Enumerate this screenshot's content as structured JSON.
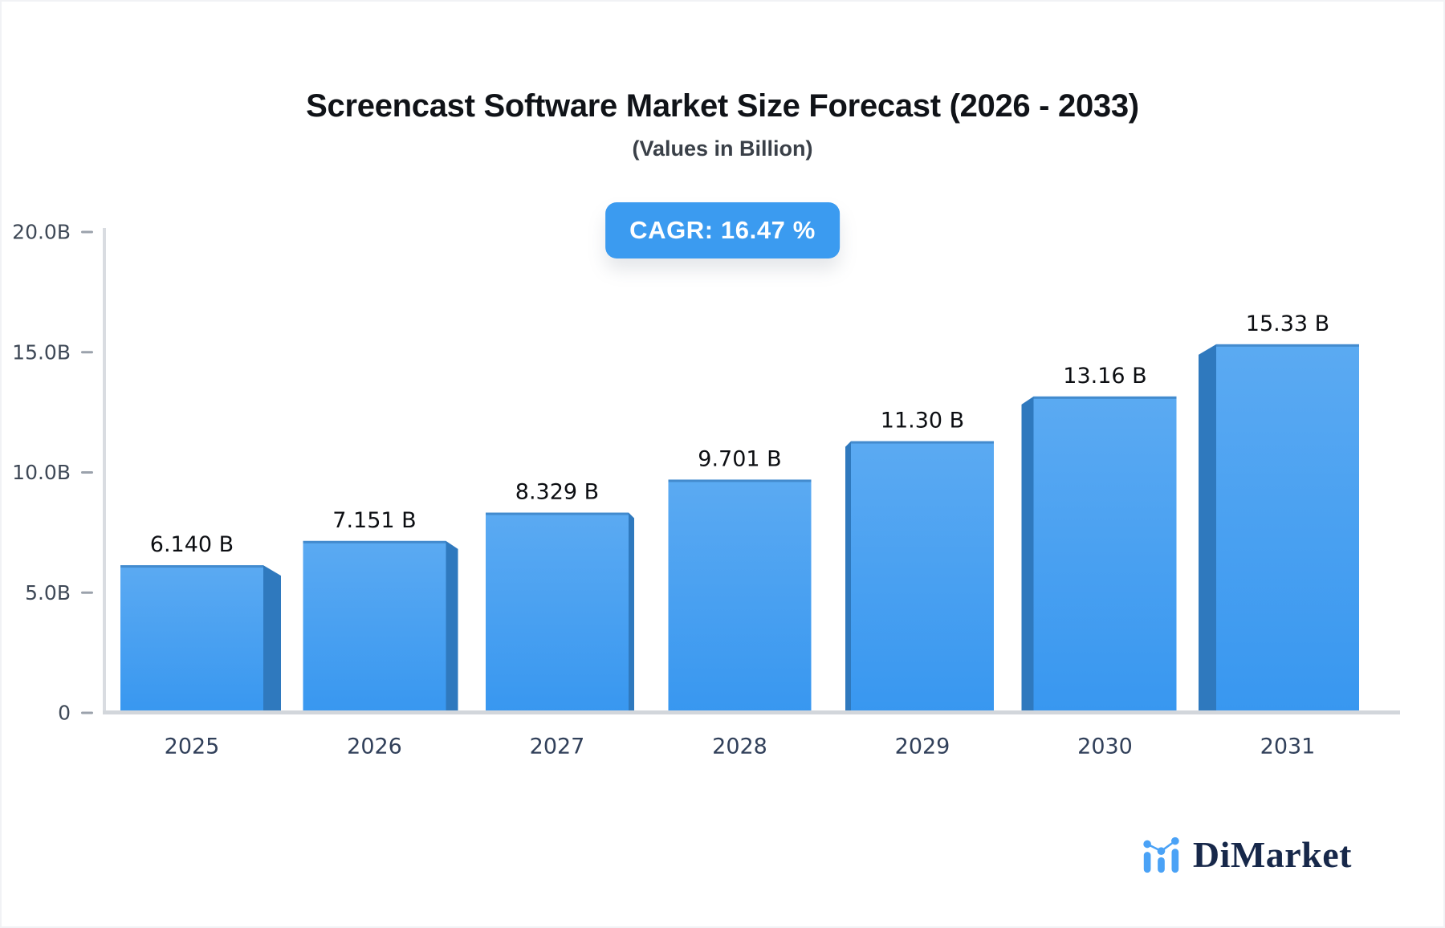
{
  "header": {
    "title": "Screencast Software Market Size Forecast (2026 - 2033)",
    "subtitle": "(Values in Billion)",
    "cagr_badge": "CAGR: 16.47 %"
  },
  "chart_data": {
    "type": "bar",
    "title": "Screencast Software Market Size Forecast (2026 - 2033)",
    "subtitle": "(Values in Billion)",
    "cagr": "16.47 %",
    "categories": [
      "2025",
      "2026",
      "2027",
      "2028",
      "2029",
      "2030",
      "2031"
    ],
    "values": [
      6.14,
      7.151,
      8.329,
      9.701,
      11.3,
      13.16,
      15.33
    ],
    "value_labels": [
      "6.140 B",
      "7.151 B",
      "8.329 B",
      "9.701 B",
      "11.30 B",
      "13.16 B",
      "15.33 B"
    ],
    "xlabel": "",
    "ylabel": "",
    "ylim": [
      0,
      20
    ],
    "y_ticks": [
      {
        "value": 20,
        "label": "20.0B"
      },
      {
        "value": 15,
        "label": "15.0B"
      },
      {
        "value": 10,
        "label": "10.0B"
      },
      {
        "value": 5,
        "label": "5.0B"
      },
      {
        "value": 0,
        "label": "0"
      }
    ],
    "grid": false,
    "legend": null,
    "bar_style": "3d-perspective-center",
    "colors": {
      "bar_face_top": "#5BAAF2",
      "bar_face_bottom": "#3897F0",
      "bar_side": "#2F79BE",
      "bar_top_edge": "#3F86C8",
      "axis_line": "#D9DCE1",
      "baseline": "#D2D6DB",
      "tick_dash": "#9BA2AC",
      "tick_label": "#3E4856",
      "year_label": "#31405A",
      "value_label": "#0C0E12",
      "badge_bg": "#3B9BF0",
      "badge_text": "#FFFFFF"
    }
  },
  "logo": {
    "text": "DiMarket",
    "icon": "bar-chart-dots-logo-icon",
    "icon_color": "#4AA2F6",
    "text_color": "#17284A"
  }
}
